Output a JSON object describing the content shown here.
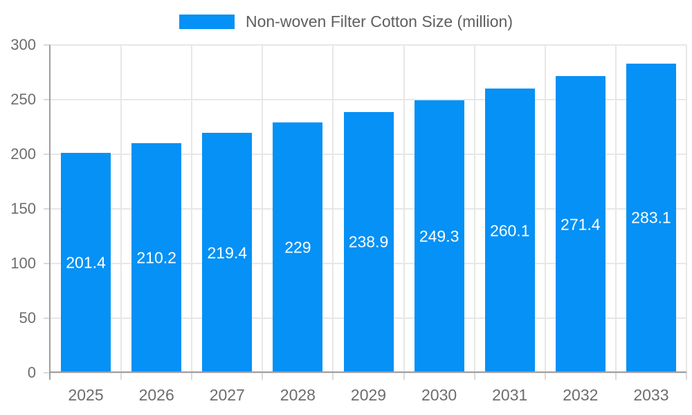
{
  "chart_data": {
    "type": "bar",
    "title": "Non-woven Filter Cotton Size (million)",
    "categories": [
      "2025",
      "2026",
      "2027",
      "2028",
      "2029",
      "2030",
      "2031",
      "2032",
      "2033"
    ],
    "series": [
      {
        "name": "Non-woven Filter Cotton Size (million)",
        "values": [
          201.4,
          210.2,
          219.4,
          229,
          238.9,
          249.3,
          260.1,
          271.4,
          283.1
        ]
      }
    ],
    "data_labels": [
      "201.4",
      "210.2",
      "219.4",
      "229",
      "238.9",
      "249.3",
      "260.1",
      "271.4",
      "283.1"
    ],
    "xlabel": "",
    "ylabel": "",
    "ylim": [
      0,
      300
    ],
    "yticks": [
      0,
      50,
      100,
      150,
      200,
      250,
      300
    ],
    "grid": true,
    "legend_position": "top-center",
    "colors": {
      "bar": "#0591f5",
      "grid_line": "#e7e7e7",
      "tick_mark": "#d9d9d9",
      "axis_line": "#9e9e9e",
      "tick_label_text": "#6d6d6d",
      "legend_text": "#5f5f5f",
      "bar_label_text": "#ffffff",
      "background": "#ffffff"
    }
  }
}
